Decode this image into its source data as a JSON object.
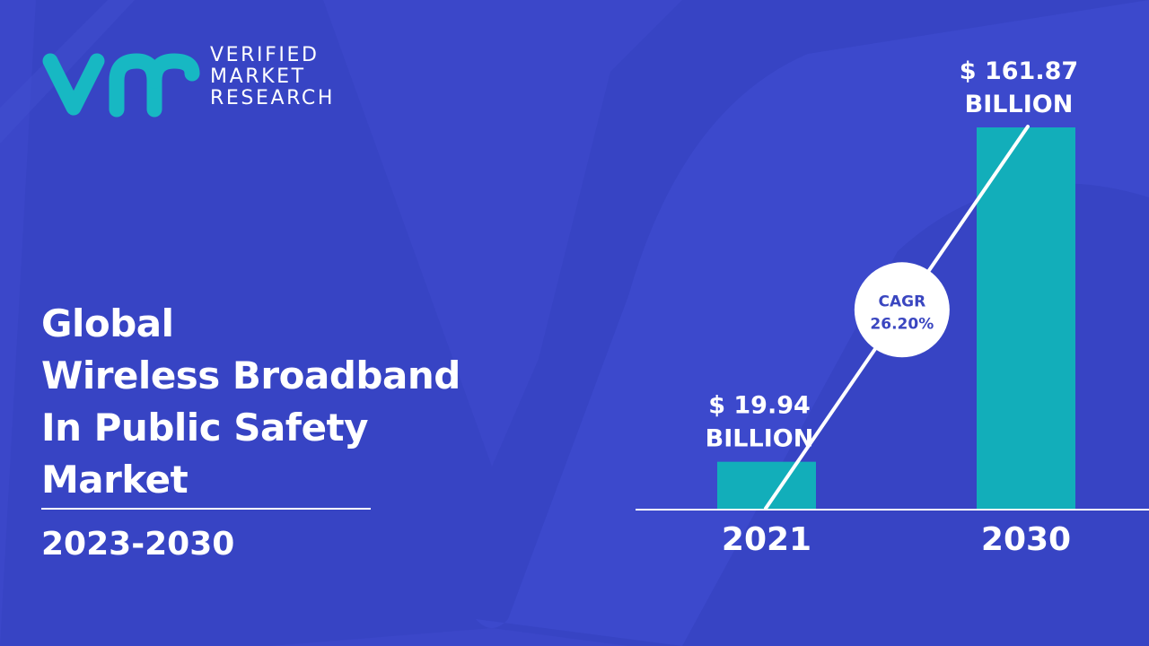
{
  "logo": {
    "icon": "vmr-logo-icon",
    "lines": [
      "VERIFIED",
      "MARKET",
      "RESEARCH"
    ]
  },
  "title_lines": [
    "Global",
    "Wireless Broadband",
    "In Public Safety",
    "Market"
  ],
  "period": "2023-2030",
  "colors": {
    "background": "#3b47c9",
    "bar": "#12aeba",
    "logo": "#17b8c3",
    "cagr_text": "#3a46c0"
  },
  "chart_data": {
    "type": "bar",
    "categories": [
      "2021",
      "2030"
    ],
    "values": [
      19.94,
      161.87
    ],
    "value_labels": [
      [
        "$ 19.94",
        "BILLION"
      ],
      [
        "$ 161.87",
        "BILLION"
      ]
    ],
    "annotation": [
      "CAGR",
      "26.20%"
    ],
    "title": "",
    "xlabel": "",
    "ylabel": ""
  }
}
